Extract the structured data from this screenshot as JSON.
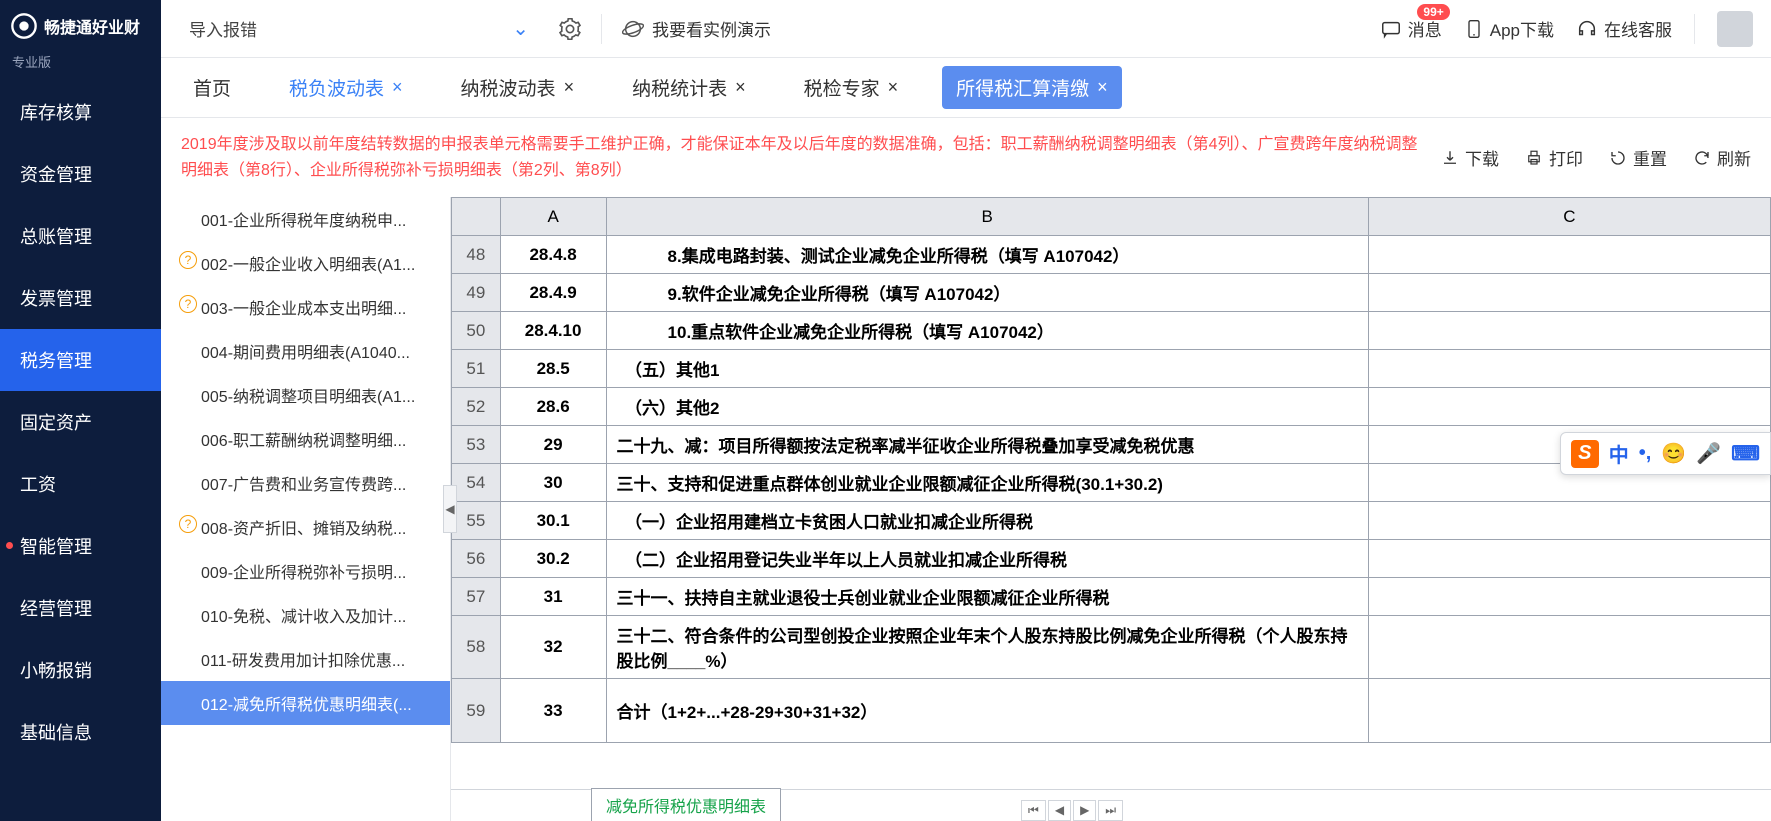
{
  "brand": {
    "name": "畅捷通好业财",
    "edition": "专业版"
  },
  "sidebar": {
    "items": [
      {
        "label": "库存核算",
        "active": false,
        "dot": false
      },
      {
        "label": "资金管理",
        "active": false,
        "dot": false
      },
      {
        "label": "总账管理",
        "active": false,
        "dot": false
      },
      {
        "label": "发票管理",
        "active": false,
        "dot": false
      },
      {
        "label": "税务管理",
        "active": true,
        "dot": false
      },
      {
        "label": "固定资产",
        "active": false,
        "dot": false
      },
      {
        "label": "工资",
        "active": false,
        "dot": false
      },
      {
        "label": "智能管理",
        "active": false,
        "dot": true
      },
      {
        "label": "经营管理",
        "active": false,
        "dot": false
      },
      {
        "label": "小畅报销",
        "active": false,
        "dot": false
      },
      {
        "label": "基础信息",
        "active": false,
        "dot": false
      }
    ]
  },
  "topbar": {
    "import_label": "导入报错",
    "demo_label": "我要看实例演示",
    "msg_label": "消息",
    "msg_badge": "99+",
    "download_label": "App下载",
    "service_label": "在线客服"
  },
  "tabs": [
    {
      "label": "首页",
      "closable": false,
      "state": "normal"
    },
    {
      "label": "税负波动表",
      "closable": true,
      "state": "selected"
    },
    {
      "label": "纳税波动表",
      "closable": true,
      "state": "normal"
    },
    {
      "label": "纳税统计表",
      "closable": true,
      "state": "normal"
    },
    {
      "label": "税检专家",
      "closable": true,
      "state": "normal"
    },
    {
      "label": "所得税汇算清缴",
      "closable": true,
      "state": "active-blue"
    }
  ],
  "notice": "2019年度涉及取以前年度结转数据的申报表单元格需要手工维护正确，才能保证本年及以后年度的数据准确，包括：职工薪酬纳税调整明细表（第4列）、广宣费跨年度纳税调整明细表（第8行）、企业所得税弥补亏损明细表（第2列、第8列）",
  "actions": {
    "download": "下载",
    "print": "打印",
    "reset": "重置",
    "refresh": "刷新"
  },
  "tree": [
    {
      "label": "001-企业所得税年度纳税申...",
      "warn": false,
      "active": false
    },
    {
      "label": "002-一般企业收入明细表(A1...",
      "warn": true,
      "active": false
    },
    {
      "label": "003-一般企业成本支出明细...",
      "warn": true,
      "active": false
    },
    {
      "label": "004-期间费用明细表(A1040...",
      "warn": false,
      "active": false
    },
    {
      "label": "005-纳税调整项目明细表(A1...",
      "warn": false,
      "active": false
    },
    {
      "label": "006-职工薪酬纳税调整明细...",
      "warn": false,
      "active": false
    },
    {
      "label": "007-广告费和业务宣传费跨...",
      "warn": false,
      "active": false
    },
    {
      "label": "008-资产折旧、摊销及纳税...",
      "warn": true,
      "active": false
    },
    {
      "label": "009-企业所得税弥补亏损明...",
      "warn": false,
      "active": false
    },
    {
      "label": "010-免税、减计收入及加计...",
      "warn": false,
      "active": false
    },
    {
      "label": "011-研发费用加计扣除优惠...",
      "warn": false,
      "active": false
    },
    {
      "label": "012-减免所得税优惠明细表(...",
      "warn": false,
      "active": true
    }
  ],
  "sheet": {
    "columns": [
      "A",
      "B",
      "C"
    ],
    "rows": [
      {
        "num": "48",
        "a": "28.4.8",
        "b": "　　　8.集成电路封装、测试企业减免企业所得税（填写 A107042）",
        "h": ""
      },
      {
        "num": "49",
        "a": "28.4.9",
        "b": "　　　9.软件企业减免企业所得税（填写 A107042）",
        "h": ""
      },
      {
        "num": "50",
        "a": "28.4.10",
        "b": "　　　10.重点软件企业减免企业所得税（填写 A107042）",
        "h": ""
      },
      {
        "num": "51",
        "a": "28.5",
        "b": "　（五）其他1",
        "h": ""
      },
      {
        "num": "52",
        "a": "28.6",
        "b": "　（六）其他2",
        "h": ""
      },
      {
        "num": "53",
        "a": "29",
        "b": "二十九、减：项目所得额按法定税率减半征收企业所得税叠加享受减免税优惠",
        "h": ""
      },
      {
        "num": "54",
        "a": "30",
        "b": "三十、支持和促进重点群体创业就业企业限额减征企业所得税(30.1+30.2)",
        "h": ""
      },
      {
        "num": "55",
        "a": "30.1",
        "b": "　（一）企业招用建档立卡贫困人口就业扣减企业所得税",
        "h": ""
      },
      {
        "num": "56",
        "a": "30.2",
        "b": "　（二）企业招用登记失业半年以上人员就业扣减企业所得税",
        "h": ""
      },
      {
        "num": "57",
        "a": "31",
        "b": "三十一、扶持自主就业退役士兵创业就业企业限额减征企业所得税",
        "h": ""
      },
      {
        "num": "58",
        "a": "32",
        "b": "三十二、符合条件的公司型创投企业按照企业年末个人股东持股比例减免企业所得税（个人股东持股比例____%）",
        "h": "tall"
      },
      {
        "num": "59",
        "a": "33",
        "b": "合计（1+2+...+28-29+30+31+32）",
        "h": "xtall"
      }
    ],
    "bottom_tab": "减免所得税优惠明细表"
  },
  "ime": {
    "zh": "中"
  }
}
